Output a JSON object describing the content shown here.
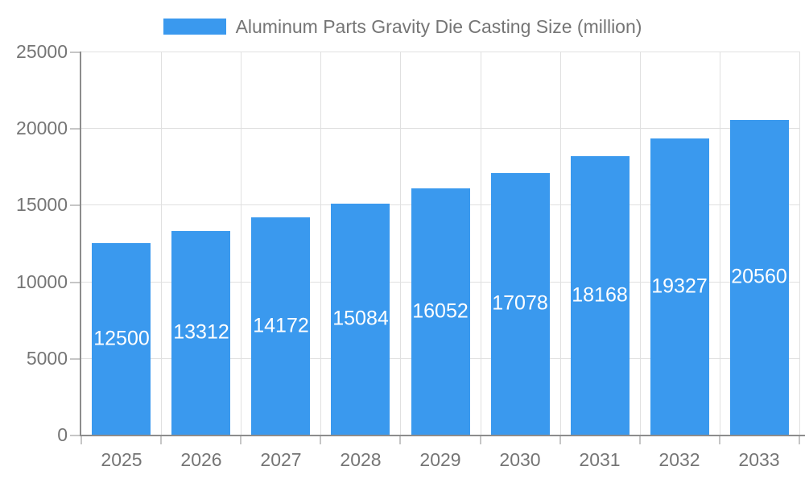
{
  "legend": {
    "label": "Aluminum Parts Gravity Die Casting Size (million)"
  },
  "chart_data": {
    "type": "bar",
    "title": "",
    "series_name": "Aluminum Parts Gravity Die Casting Size (million)",
    "categories": [
      "2025",
      "2026",
      "2027",
      "2028",
      "2029",
      "2030",
      "2031",
      "2032",
      "2033"
    ],
    "values": [
      12500,
      13312,
      14172,
      15084,
      16052,
      17078,
      18168,
      19327,
      20560
    ],
    "xlabel": "",
    "ylabel": "",
    "ylim": [
      0,
      25000
    ],
    "y_ticks": [
      0,
      5000,
      10000,
      15000,
      20000,
      25000
    ],
    "grid": true,
    "legend_position": "top",
    "value_label_position": "inside-center"
  },
  "colors": {
    "bar": "#3A99EE",
    "grid_line": "#E0E0E0",
    "axis_line": "#8C8C8C",
    "tick_mark": "#C6C6C6",
    "label_text": "#757575",
    "value_label_text": "#FFFFFF",
    "background": "#FFFFFF"
  }
}
